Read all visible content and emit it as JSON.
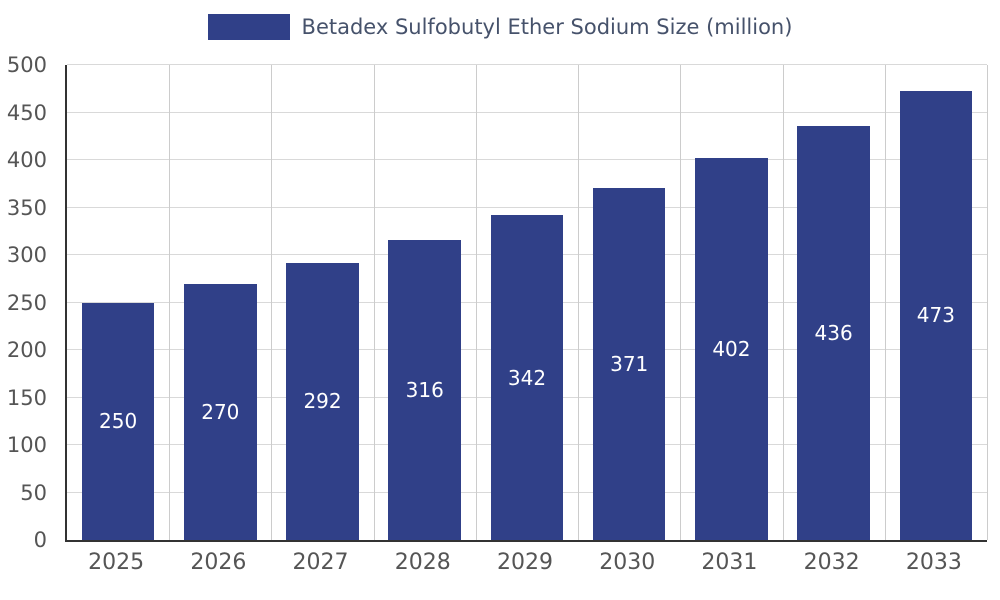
{
  "chart_data": {
    "type": "bar",
    "title": "Betadex Sulfobutyl Ether Sodium Size (million)",
    "categories": [
      "2025",
      "2026",
      "2027",
      "2028",
      "2029",
      "2030",
      "2031",
      "2032",
      "2033"
    ],
    "values": [
      250,
      270,
      292,
      316,
      342,
      371,
      402,
      436,
      473
    ],
    "xlabel": "",
    "ylabel": "",
    "ylim": [
      0,
      500
    ],
    "y_ticks": [
      0,
      50,
      100,
      150,
      200,
      250,
      300,
      350,
      400,
      450,
      500
    ],
    "grid": true,
    "legend_position": "top",
    "bar_color": "#304088",
    "value_label_color": "#ffffff",
    "axis_label_color": "#555555",
    "legend_text_color": "#46526b"
  }
}
